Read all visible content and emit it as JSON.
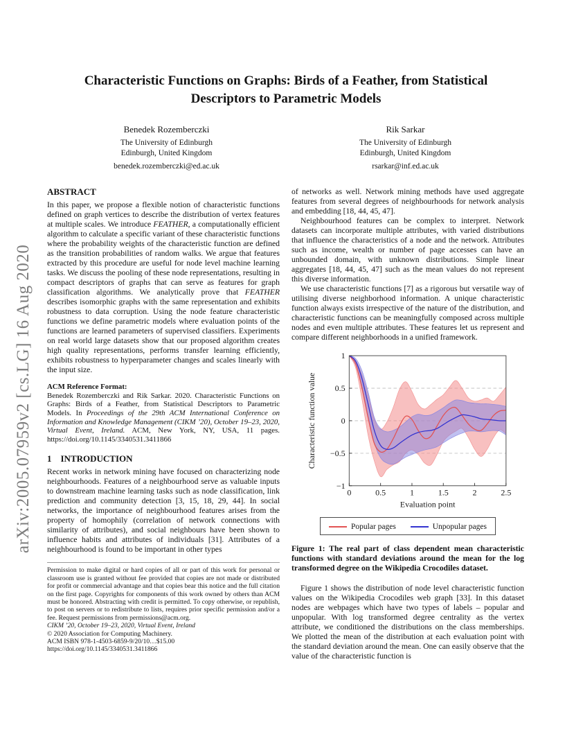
{
  "arxiv_stamp": "arXiv:2005.07959v2  [cs.LG]  16 Aug 2020",
  "title": "Characteristic Functions on Graphs: Birds of a Feather, from Statistical Descriptors to Parametric Models",
  "authors": [
    {
      "name": "Benedek Rozemberczki",
      "affiliation": "The University of Edinburgh",
      "location": "Edinburgh, United Kingdom",
      "email": "benedek.rozemberczki@ed.ac.uk"
    },
    {
      "name": "Rik Sarkar",
      "affiliation": "The University of Edinburgh",
      "location": "Edinburgh, United Kingdom",
      "email": "rsarkar@inf.ed.ac.uk"
    }
  ],
  "abstract": {
    "heading": "ABSTRACT",
    "text": "In this paper, we propose a flexible notion of characteristic functions defined on graph vertices to describe the distribution of vertex features at multiple scales. We introduce *FEATHER*, a computationally efficient algorithm to calculate a specific variant of these characteristic functions where the probability weights of the characteristic function are defined as the transition probabilities of random walks. We argue that features extracted by this procedure are useful for node level machine learning tasks. We discuss the pooling of these node representations, resulting in compact descriptors of graphs that can serve as features for graph classification algorithms. We analytically prove that *FEATHER* describes isomorphic graphs with the same representation and exhibits robustness to data corruption. Using the node feature characteristic functions we define parametric models where evaluation points of the functions are learned parameters of supervised classifiers. Experiments on real world large datasets show that our proposed algorithm creates high quality representations, performs transfer learning efficiently, exhibits robustness to hyperparameter changes and scales linearly with the input size."
  },
  "acm_ref": {
    "heading": "ACM Reference Format:",
    "text": "Benedek Rozemberczki and Rik Sarkar. 2020. Characteristic Functions on Graphs: Birds of a Feather, from Statistical Descriptors to Parametric Models. In *Proceedings of the 29th ACM International Conference on Information and Knowledge Management (CIKM ’20), October 19–23, 2020, Virtual Event, Ireland.* ACM, New York, NY, USA, 11 pages. https://doi.org/10.1145/3340531.3411866"
  },
  "introduction": {
    "number": "1",
    "heading": "INTRODUCTION",
    "para1": "Recent works in network mining have focused on characterizing node neighbourhoods. Features of a neighbourhood serve as valuable inputs to downstream machine learning tasks such as node classification, link prediction and community detection [3, 15, 18, 29, 44]. In social networks, the importance of neighbourhood features arises from the property of homophily (correlation of network connections with similarity of attributes), and social neighbours have been shown to influence habits and attributes of individuals [31]. Attributes of a neighbourhood is found to be important in other types"
  },
  "footnote": {
    "permission": "Permission to make digital or hard copies of all or part of this work for personal or classroom use is granted without fee provided that copies are not made or distributed for profit or commercial advantage and that copies bear this notice and the full citation on the first page. Copyrights for components of this work owned by others than ACM must be honored. Abstracting with credit is permitted. To copy otherwise, or republish, to post on servers or to redistribute to lists, requires prior specific permission and/or a fee. Request permissions from permissions@acm.org.",
    "venue": "CIKM ’20, October 19–23, 2020, Virtual Event, Ireland",
    "copyright": "© 2020 Association for Computing Machinery.",
    "isbn": "ACM ISBN 978-1-4503-6859-9/20/10…$15.00",
    "doi": "https://doi.org/10.1145/3340531.3411866"
  },
  "right_column": {
    "para1": "of networks as well. Network mining methods have used aggregate features from several degrees of neighbourhoods for network analysis and embedding [18, 44, 45, 47].",
    "para2": "Neighbourhood features can be complex to interpret. Network datasets can incorporate multiple attributes, with varied distributions that influence the characteristics of a node and the network. Attributes such as income, wealth or number of page accesses can have an unbounded domain, with unknown distributions. Simple linear aggregates [18, 44, 45, 47] such as the mean values do not represent this diverse information.",
    "para3": "We use characteristic functions [7] as a rigorous but versatile way of utilising diverse neighborhood information. A unique characteristic function always exists irrespective of the nature of the distribution, and characteristic functions can be meaningfully composed across multiple nodes and even multiple attributes. These features let us represent and compare different neighborhoods in a unified framework.",
    "after_figure": "Figure 1 shows the distribution of node level characteristic function values on the Wikipedia Crocodiles web graph [33]. In this dataset nodes are webpages which have two types of labels – popular and unpopular. With log transformed degree centrality as the vertex attribute, we conditioned the distributions on the class memberships. We plotted the mean of the distribution at each evaluation point with the standard deviation around the mean. One can easily observe that the value of the characteristic function is"
  },
  "figure": {
    "caption": "Figure 1: The real part of class dependent mean characteristic functions with standard deviations around the mean for the log transformed degree on the Wikipedia Crocodiles dataset."
  },
  "chart_data": {
    "type": "line",
    "title": "",
    "xlabel": "Evaluation point",
    "ylabel": "Characteristic function value",
    "xlim": [
      0,
      2.5
    ],
    "ylim": [
      -1,
      1
    ],
    "grid": "horizontal-dashed",
    "gridlines": [
      0.5,
      0,
      -0.5
    ],
    "legend_position": "below",
    "x_ticks": [
      {
        "v": 0,
        "label": "0"
      },
      {
        "v": 0.5,
        "label": "0.5"
      },
      {
        "v": 1,
        "label": "1"
      },
      {
        "v": 1.5,
        "label": "1.5"
      },
      {
        "v": 2,
        "label": "2"
      },
      {
        "v": 2.5,
        "label": "2.5"
      }
    ],
    "y_ticks": [
      {
        "v": 1,
        "label": "1"
      },
      {
        "v": 0.5,
        "label": "0.5"
      },
      {
        "v": 0,
        "label": "0"
      },
      {
        "v": -0.5,
        "label": "−0.5"
      },
      {
        "v": -1,
        "label": "−1"
      }
    ],
    "x": [
      0,
      0.1,
      0.2,
      0.3,
      0.4,
      0.5,
      0.6,
      0.7,
      0.8,
      0.9,
      1.0,
      1.1,
      1.2,
      1.3,
      1.4,
      1.5,
      1.6,
      1.7,
      1.8,
      1.9,
      2.0,
      2.1,
      2.2,
      2.3,
      2.4,
      2.5
    ],
    "series": [
      {
        "name": "Popular pages",
        "color": "#e25252",
        "band_color": "#f28d8d",
        "band_opacity": 0.55,
        "mean": [
          1,
          0.88,
          0.52,
          0.05,
          -0.35,
          -0.48,
          -0.44,
          -0.28,
          -0.08,
          0.07,
          0.02,
          -0.15,
          -0.27,
          -0.24,
          -0.08,
          0.08,
          0.18,
          0.2,
          0.08,
          -0.05,
          -0.13,
          -0.15,
          -0.05,
          0.08,
          0.15,
          0.16
        ],
        "upper": [
          1,
          0.93,
          0.72,
          0.4,
          0.03,
          -0.13,
          -0.02,
          0.2,
          0.48,
          0.6,
          0.45,
          0.25,
          0.18,
          0.25,
          0.33,
          0.4,
          0.52,
          0.62,
          0.5,
          0.35,
          0.3,
          0.32,
          0.35,
          0.3,
          0.4,
          0.52
        ],
        "lower": [
          1,
          0.82,
          0.35,
          -0.22,
          -0.62,
          -0.86,
          -0.75,
          -0.68,
          -0.63,
          -0.5,
          -0.45,
          -0.52,
          -0.65,
          -0.68,
          -0.52,
          -0.32,
          -0.22,
          -0.16,
          -0.12,
          -0.26,
          -0.44,
          -0.55,
          -0.44,
          -0.26,
          -0.14,
          -0.2
        ]
      },
      {
        "name": "Unpopular pages",
        "color": "#3232cf",
        "band_color": "#8282e2",
        "band_opacity": 0.5,
        "mean": [
          1,
          0.92,
          0.66,
          0.26,
          -0.15,
          -0.38,
          -0.44,
          -0.42,
          -0.35,
          -0.28,
          -0.22,
          -0.18,
          -0.16,
          -0.15,
          -0.12,
          -0.06,
          0.0,
          0.05,
          0.09,
          0.08,
          0.06,
          0.03,
          0.02,
          0.01,
          0.0,
          0.0
        ],
        "upper": [
          1,
          0.96,
          0.78,
          0.45,
          0.05,
          -0.12,
          -0.17,
          -0.15,
          -0.1,
          -0.02,
          0.06,
          0.1,
          0.08,
          0.09,
          0.14,
          0.2,
          0.27,
          0.32,
          0.31,
          0.28,
          0.27,
          0.26,
          0.26,
          0.25,
          0.24,
          0.22
        ],
        "lower": [
          1,
          0.87,
          0.55,
          0.08,
          -0.34,
          -0.57,
          -0.65,
          -0.67,
          -0.62,
          -0.56,
          -0.52,
          -0.48,
          -0.45,
          -0.43,
          -0.4,
          -0.34,
          -0.28,
          -0.23,
          -0.19,
          -0.16,
          -0.16,
          -0.17,
          -0.16,
          -0.15,
          -0.16,
          -0.22
        ]
      }
    ]
  }
}
